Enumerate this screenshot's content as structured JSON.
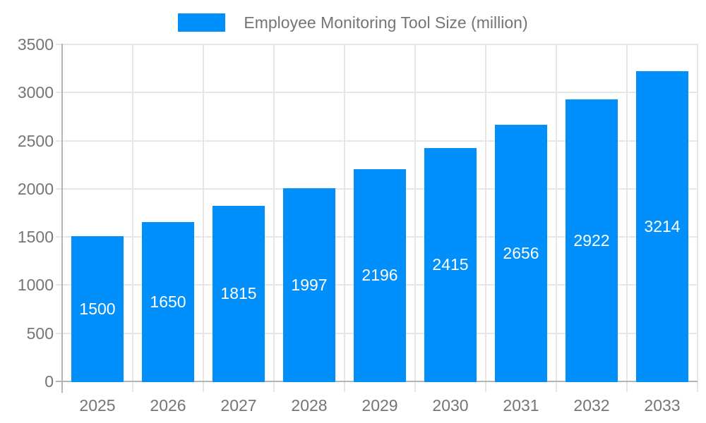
{
  "legend": {
    "label": "Employee Monitoring Tool Size (million)"
  },
  "chart_data": {
    "type": "bar",
    "title": "Employee Monitoring Tool Size (million)",
    "categories": [
      "2025",
      "2026",
      "2027",
      "2028",
      "2029",
      "2030",
      "2031",
      "2032",
      "2033"
    ],
    "values": [
      1500,
      1650,
      1815,
      1997,
      2196,
      2415,
      2656,
      2922,
      3214
    ],
    "xlabel": "",
    "ylabel": "",
    "ylim": [
      0,
      3500
    ],
    "ytick_step": 500,
    "yticks": [
      0,
      500,
      1000,
      1500,
      2000,
      2500,
      3000,
      3500
    ],
    "grid": true,
    "legend_position": "top",
    "bar_labels_inside": true,
    "colors": {
      "bar": "#008ffb",
      "bar_label": "#ffffff",
      "axis": "#b4b4b4",
      "grid": "#e6e6e6",
      "tick_text": "#757575",
      "legend_text": "#757575",
      "background": "#ffffff"
    }
  }
}
